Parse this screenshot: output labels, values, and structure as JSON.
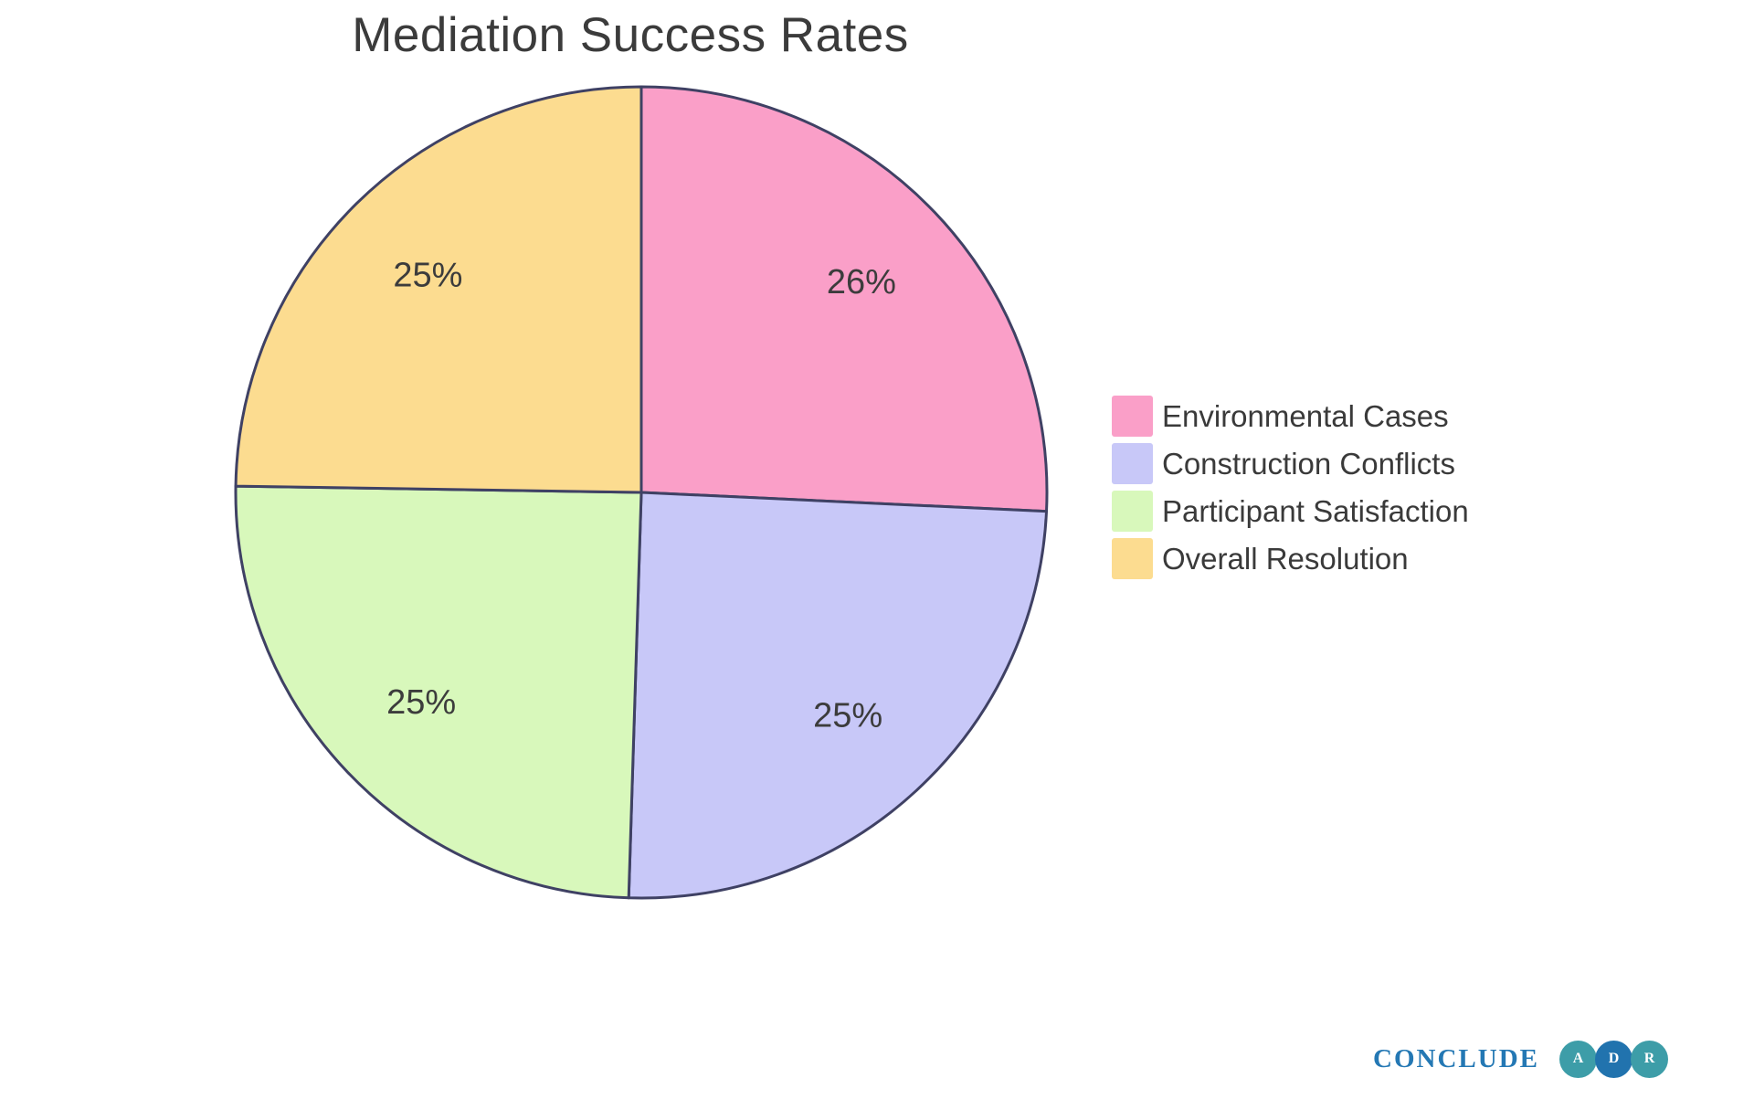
{
  "page": {
    "background": "#ffffff"
  },
  "chart_data": {
    "type": "pie",
    "title": "Mediation Success Rates",
    "labels": [
      "Environmental Cases",
      "Construction Conflicts",
      "Participant Satisfaction",
      "Overall Resolution"
    ],
    "values": [
      26,
      25,
      25,
      25
    ],
    "slice_labels": [
      "26%",
      "25%",
      "25%",
      "25%"
    ],
    "colors": [
      "#FA9FC8",
      "#C8C8F8",
      "#D8F8BB",
      "#FCDC90"
    ],
    "slice_border_color": "#3F4164",
    "pct_label_color": "#3C3C3C",
    "title_color": "#3B3B3B",
    "legend_text_color": "#3A3A3A",
    "legend_position": "right",
    "start_angle": "top",
    "direction": "clockwise"
  },
  "branding": {
    "wordmark": "CONCLUDE",
    "wordmark_color": "#2478B4",
    "badges": [
      {
        "letter": "A",
        "color": "#3D9DA8"
      },
      {
        "letter": "D",
        "color": "#2173AE"
      },
      {
        "letter": "R",
        "color": "#3D9DA8"
      }
    ]
  }
}
